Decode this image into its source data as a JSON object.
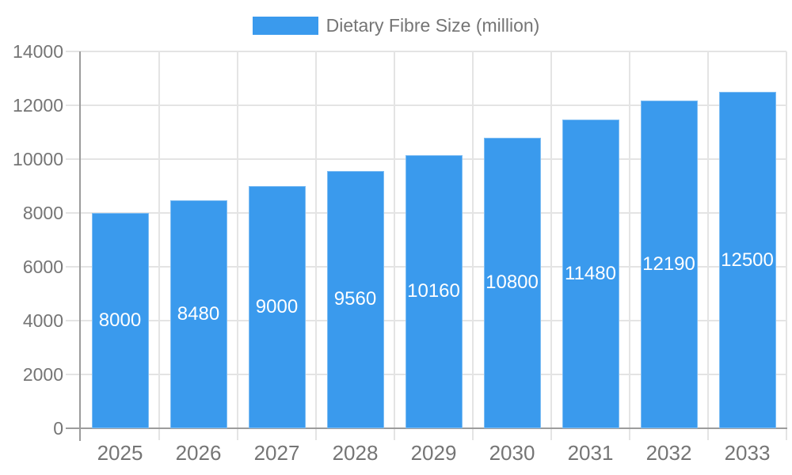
{
  "legend": {
    "label": "Dietary Fibre Size (million)"
  },
  "chart_data": {
    "type": "bar",
    "title": "Dietary Fibre Size (million)",
    "categories": [
      "2025",
      "2026",
      "2027",
      "2028",
      "2029",
      "2030",
      "2031",
      "2032",
      "2033"
    ],
    "values": [
      8000,
      8480,
      9000,
      9560,
      10160,
      10800,
      11480,
      12190,
      12500
    ],
    "series": [
      {
        "name": "Dietary Fibre Size (million)",
        "values": [
          8000,
          8480,
          9000,
          9560,
          10160,
          10800,
          11480,
          12190,
          12500
        ]
      }
    ],
    "xlabel": "",
    "ylabel": "",
    "ylim": [
      0,
      14000
    ],
    "yticks": [
      0,
      2000,
      4000,
      6000,
      8000,
      10000,
      12000,
      14000
    ],
    "grid": true,
    "legend_position": "top",
    "data_labels": "inside-center",
    "colors": {
      "bar": "#3a9aed",
      "bar_label": "#ffffff",
      "axis_line": "#9c9c9c",
      "grid_line": "#e4e4e4",
      "axis_text": "#757575"
    }
  }
}
